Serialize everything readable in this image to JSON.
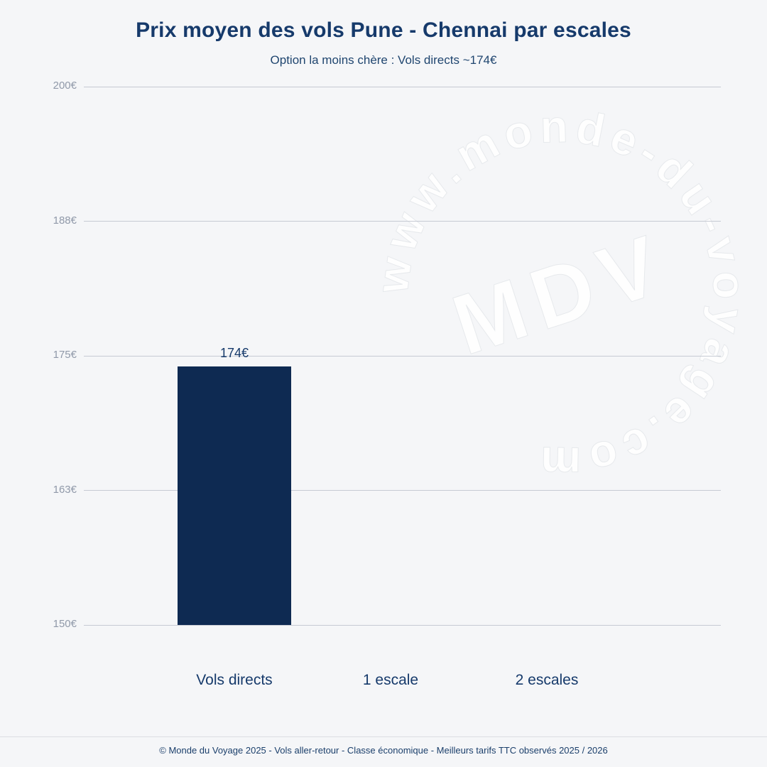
{
  "page": {
    "title": "Prix moyen des vols Pune - Chennai par escales",
    "subtitle": "Option la moins chère : Vols directs ~174€",
    "footer": "© Monde du Voyage 2025 - Vols aller-retour - Classe économique - Meilleurs tarifs TTC observés 2025 / 2026",
    "watermark": {
      "ring_text": "www.monde-du-voyage.com",
      "center_text": "MDV"
    }
  },
  "chart_data": {
    "type": "bar",
    "title": "Prix moyen des vols Pune - Chennai par escales",
    "subtitle": "Option la moins chère : Vols directs ~174€",
    "categories": [
      "Vols directs",
      "1 escale",
      "2 escales"
    ],
    "values": [
      174,
      null,
      null
    ],
    "value_labels": [
      "174€",
      "",
      ""
    ],
    "ylabel": "",
    "xlabel": "",
    "ylim": [
      150,
      200
    ],
    "ytick_labels": [
      "150€",
      "163€",
      "175€",
      "188€",
      "200€"
    ],
    "grid": true,
    "legend": "none",
    "bar_color": "#0e2a52",
    "currency": "€"
  },
  "colors": {
    "background": "#f5f6f8",
    "bar": "#0e2a52",
    "title": "#163a6b",
    "gridline": "#c6cad3",
    "tick_label": "#9099a9"
  }
}
